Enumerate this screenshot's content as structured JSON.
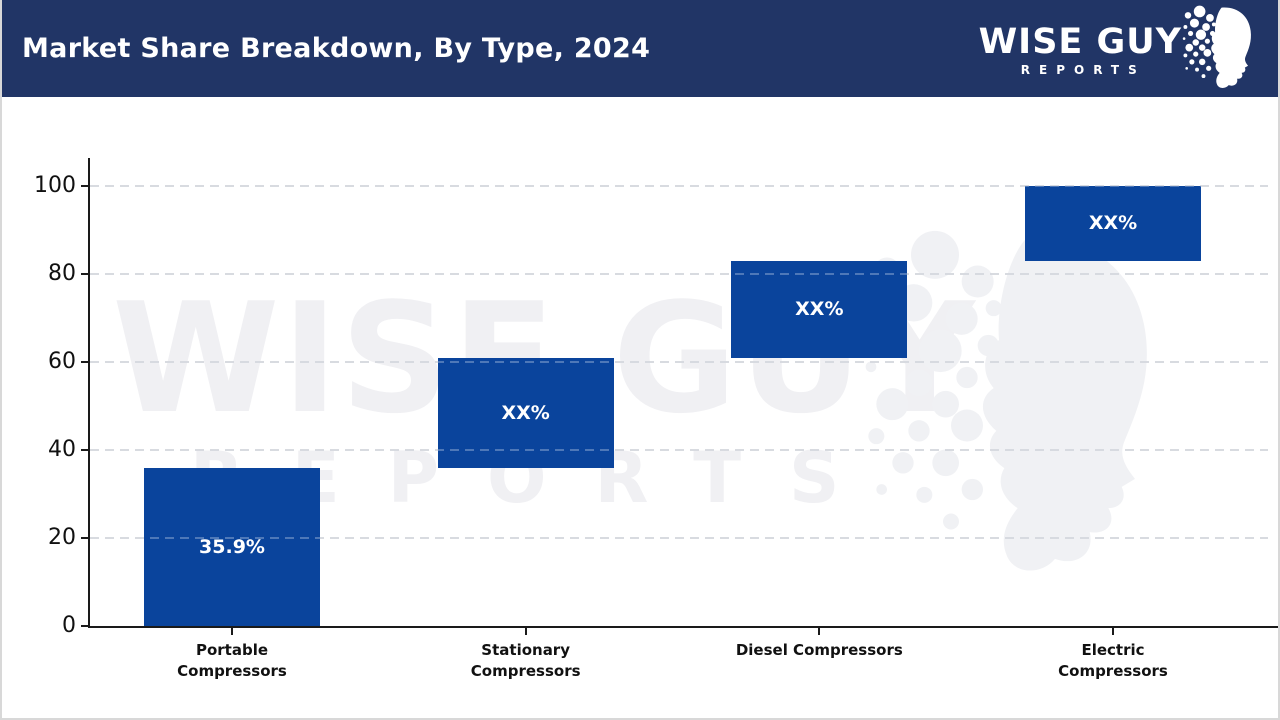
{
  "header": {
    "title": "Market Share Breakdown, By Type, 2024",
    "logo": {
      "brand": "WISE GUY",
      "sub": "REPORTS"
    }
  },
  "watermark": {
    "brand": "WISE GUY",
    "sub": "REPORTS"
  },
  "chart_data": {
    "type": "bar",
    "subtype": "floating-waterfall-segments",
    "title": "Market Share Breakdown, By Type, 2024",
    "categories": [
      "Portable\nCompressors",
      "Stationary\nCompressors",
      "Diesel Compressors",
      "Electric\nCompressors"
    ],
    "bars": [
      {
        "category": "Portable Compressors",
        "start": 0,
        "end": 35.9,
        "label": "35.9%"
      },
      {
        "category": "Stationary Compressors",
        "start": 35.9,
        "end": 61,
        "label": "XX%"
      },
      {
        "category": "Diesel Compressors",
        "start": 61,
        "end": 83,
        "label": "XX%"
      },
      {
        "category": "Electric Compressors",
        "start": 83,
        "end": 100,
        "label": "XX%"
      }
    ],
    "xlabel": "",
    "ylabel": "",
    "ylim": [
      0,
      100
    ],
    "yticks": [
      0,
      20,
      40,
      60,
      80,
      100
    ],
    "grid": {
      "axis": "y",
      "style": "dashed",
      "color": "#cdd0d6"
    },
    "legend": "none",
    "bar_color": "#0a449c",
    "bar_label_color": "#ffffff"
  },
  "colors": {
    "header_bg": "#213566",
    "bar": "#0a449c",
    "axis": "#1a1a1a",
    "watermark": "#f0f0f3",
    "page_border": "#d8d8d8"
  }
}
